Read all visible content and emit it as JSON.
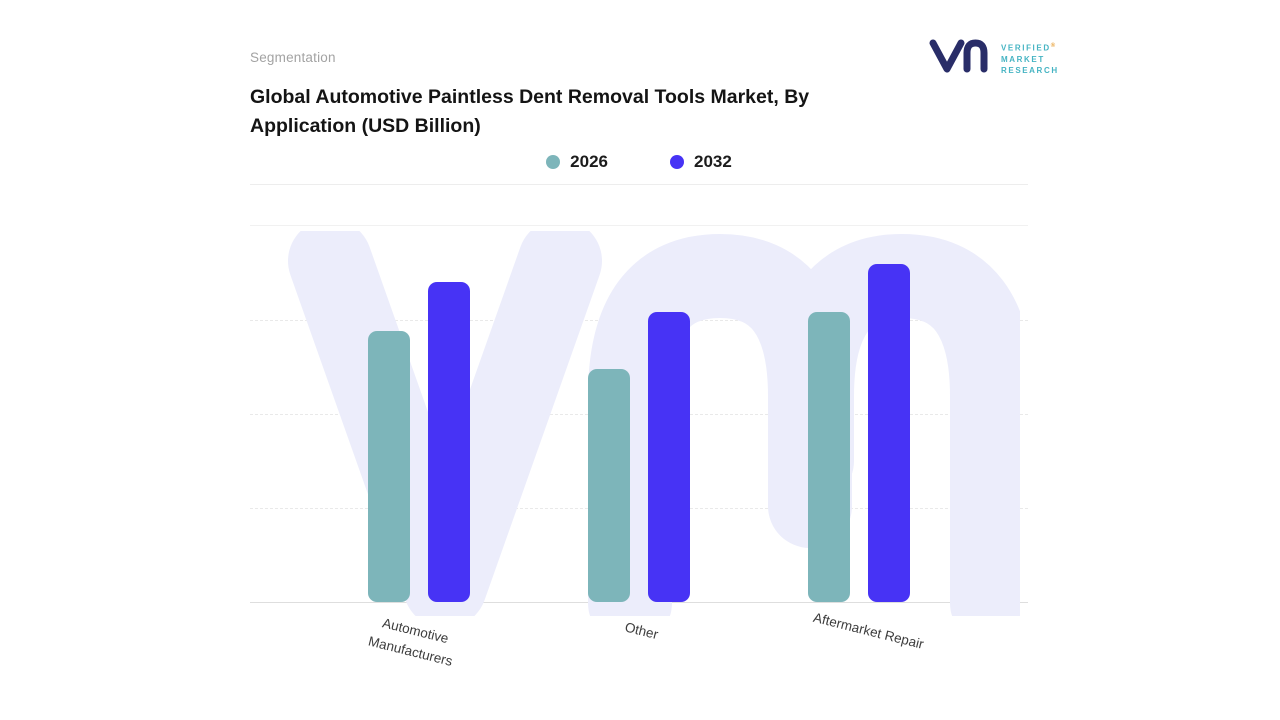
{
  "page": {
    "eyebrow": "Segmentation",
    "title": "Global Automotive Paintless Dent Removal Tools Market, By Application (USD Billion)"
  },
  "brand": {
    "lines": [
      "VERIFIED",
      "MARKET",
      "RESEARCH"
    ],
    "registered_mark": "®",
    "logo_color": "#292d68",
    "text_color": "#46b4c3"
  },
  "chart_data": {
    "type": "bar",
    "title": "Global Automotive Paintless Dent Removal Tools Market, By Application (USD Billion)",
    "categories": [
      "Automotive Manufacturers",
      "Other",
      "Aftermarket Repair"
    ],
    "series": [
      {
        "name": "2026",
        "color": "#7db5ba",
        "values": [
          72,
          62,
          77
        ]
      },
      {
        "name": "2032",
        "color": "#4733f5",
        "values": [
          85,
          77,
          90
        ]
      }
    ],
    "xlabel": "",
    "ylabel": "",
    "ylim": [
      0,
      100
    ],
    "y_axis_labels_shown": false,
    "grid": "horizontal-dashed",
    "gridline_positions_pct": [
      25,
      50,
      75
    ],
    "legend_position": "top-center",
    "watermark_color": "#ecedfb"
  }
}
